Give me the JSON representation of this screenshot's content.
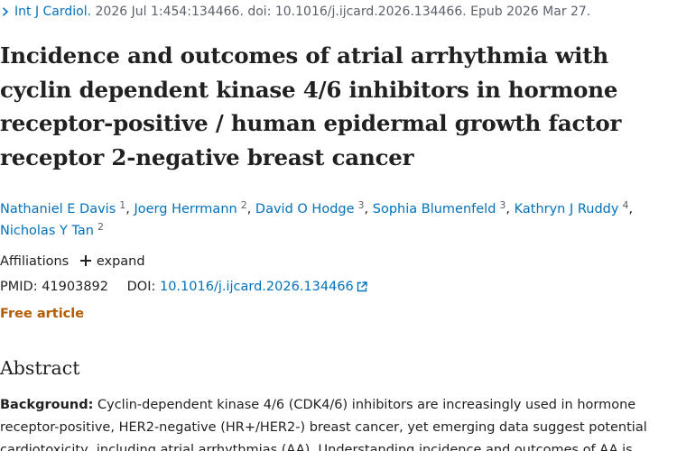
{
  "citation": {
    "journal": "Int J Cardiol.",
    "details": " 2026 Jul 1:454:134466. doi: 10.1016/j.ijcard.2026.134466. Epub 2026 Mar 27."
  },
  "title": "Incidence and outcomes of atrial arrhythmia with cyclin dependent kinase 4/6 inhibitors in hormone receptor-positive / human epidermal growth factor receptor 2-negative breast cancer",
  "authors": [
    {
      "name": "Nathaniel E Davis",
      "aff": "1"
    },
    {
      "name": "Joerg Herrmann",
      "aff": "2"
    },
    {
      "name": "David O Hodge",
      "aff": "3"
    },
    {
      "name": "Sophia Blumenfeld",
      "aff": "3"
    },
    {
      "name": "Kathryn J Ruddy",
      "aff": "4"
    },
    {
      "name": "Nicholas Y Tan",
      "aff": "2"
    }
  ],
  "author_separator": ",",
  "affiliations": {
    "label": "Affiliations",
    "expand_label": "expand"
  },
  "identifiers": {
    "pmid_label": "PMID:",
    "pmid": "41903892",
    "doi_label": "DOI:",
    "doi": "10.1016/j.ijcard.2026.134466"
  },
  "free_article": "Free article",
  "abstract": {
    "heading": "Abstract",
    "background_label": "Background:",
    "lines": [
      " Cyclin-dependent kinase 4/6 (CDK4/6) inhibitors are increasingly used in hormone",
      "receptor-positive, HER2-negative (HR+/HER2-) breast cancer, yet emerging data suggest potential",
      "cardiotoxicity, including atrial arrhythmias (AA). Understanding incidence and outcomes of AA is"
    ]
  },
  "icons": {
    "journal_chevron": "chevron-right-icon",
    "expand": "plus-icon",
    "doi_external": "external-link-icon"
  },
  "colors": {
    "link": "#0071bc",
    "text": "#212121",
    "muted": "#5b616b",
    "free_article": "#b35c00"
  }
}
